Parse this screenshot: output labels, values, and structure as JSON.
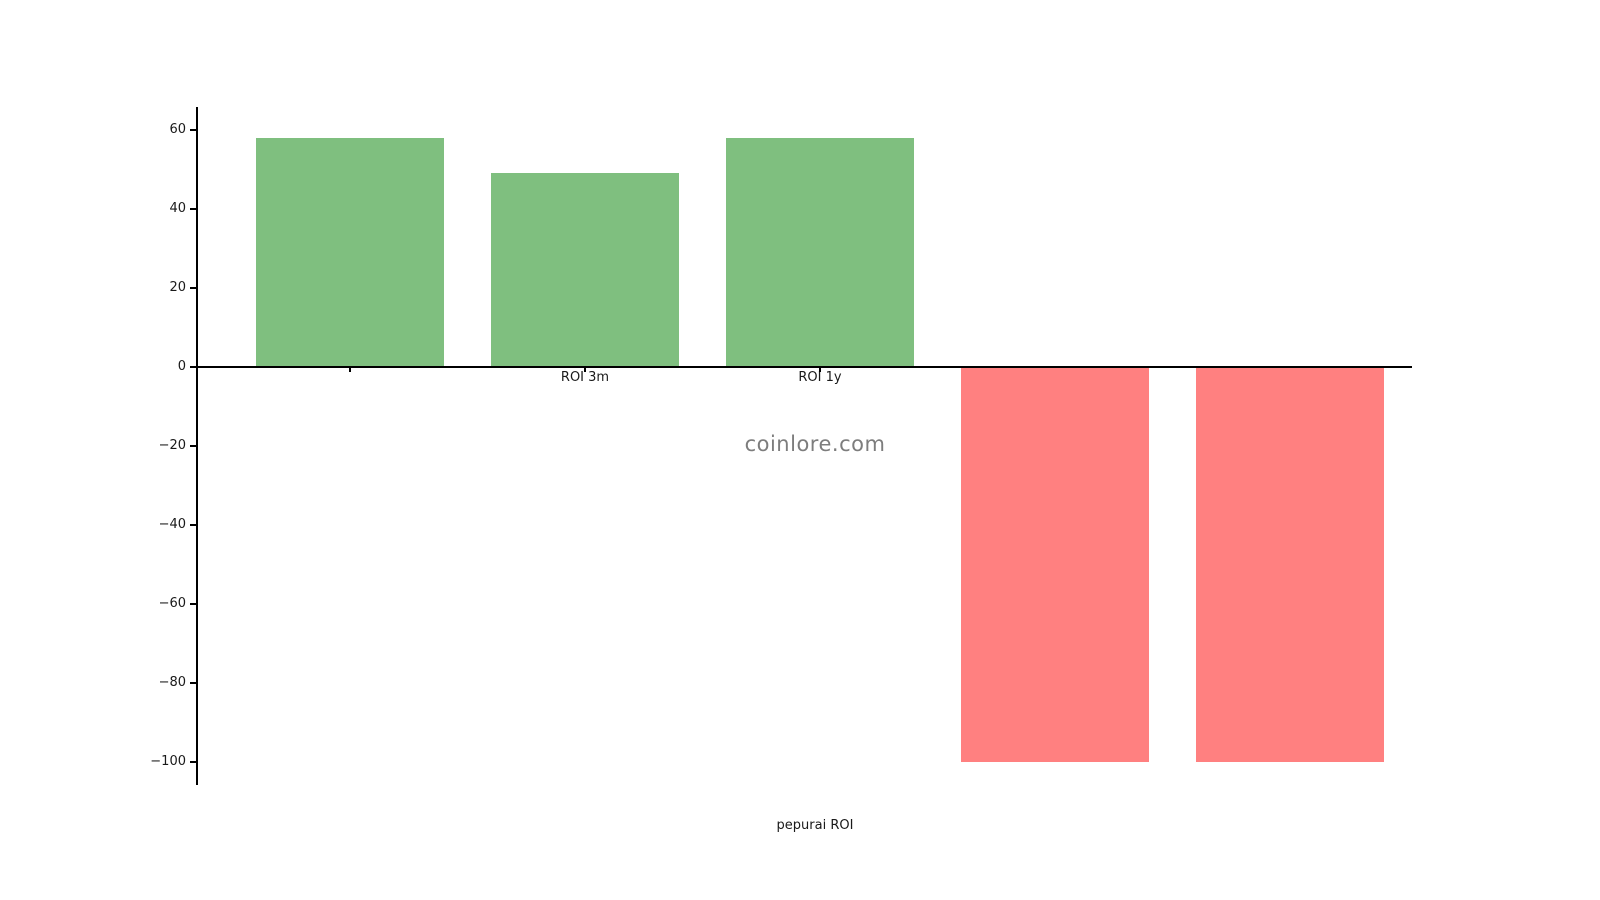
{
  "watermark": "coinlore.com",
  "chart_data": {
    "type": "bar",
    "title": "",
    "xlabel": "pepurai ROI",
    "ylabel": "",
    "categories": [
      "",
      "ROI 3m",
      "ROI 1y",
      "",
      ""
    ],
    "values": [
      58,
      49,
      58,
      -100,
      -100
    ],
    "yticks": [
      60,
      40,
      20,
      0,
      -20,
      -40,
      -60,
      -80,
      -100
    ],
    "ytick_labels": [
      "60",
      "40",
      "20",
      "0",
      "−20",
      "−40",
      "−60",
      "−80",
      "−100"
    ],
    "ylim": [
      -106,
      66
    ],
    "grid": false,
    "legend": "none",
    "colors": {
      "positive_bar": "#7fbf7f",
      "negative_bar": "#ff8080",
      "axis": "#000000",
      "watermark_text": "#7d7d7d"
    }
  }
}
